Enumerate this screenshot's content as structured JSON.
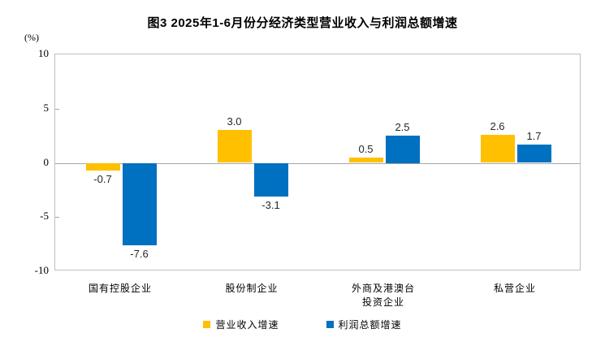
{
  "chart_data": {
    "type": "bar",
    "title": "图3 2025年1-6月份分经济类型营业收入与利润总额增速",
    "unit": "(%)",
    "categories": [
      "国有控股企业",
      "股份制企业",
      "外商及港澳台\n投资企业",
      "私营企业"
    ],
    "series": [
      {
        "name": "营业收入增速",
        "color": "#FFC000",
        "values": [
          -0.7,
          3.0,
          0.5,
          2.6
        ]
      },
      {
        "name": "利润总额增速",
        "color": "#0070C0",
        "values": [
          -7.6,
          -3.1,
          2.5,
          1.7
        ]
      }
    ],
    "ylim": [
      -10,
      10
    ],
    "yticks": [
      10,
      5,
      0,
      -5,
      -10
    ],
    "grid": "zero-line-only",
    "legend_position": "bottom",
    "colors": {
      "frame": "#BFBFBF",
      "zero_line": "#A6A6A6",
      "bar_label_text": "#262626"
    }
  }
}
